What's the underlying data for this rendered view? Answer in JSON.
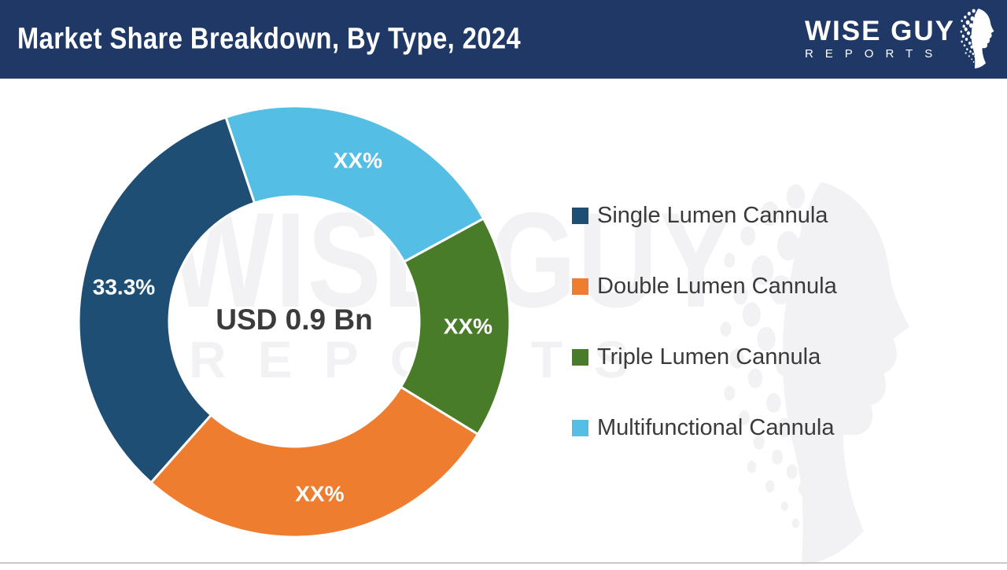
{
  "header": {
    "title": "Market Share Breakdown, By Type, 2024",
    "logo": {
      "wordmark": "WISE GUY",
      "subtext": "REPORTS"
    }
  },
  "watermark": {
    "wordmark": "WISE GUY",
    "subtext": "REPORTS"
  },
  "chart_data": {
    "type": "pie",
    "variant": "donut",
    "title": "Market Share Breakdown, By Type, 2024",
    "center_label": "USD 0.9 Bn",
    "series": [
      {
        "name": "Single Lumen Cannula",
        "value": 33.3,
        "label": "33.3%",
        "color": "#1F4E74"
      },
      {
        "name": "Double Lumen Cannula",
        "value": 27.8,
        "label": "XX%",
        "color": "#EE7D30"
      },
      {
        "name": "Triple Lumen Cannula",
        "value": 16.7,
        "label": "XX%",
        "color": "#487C28"
      },
      {
        "name": "Multifunctional Cannula",
        "value": 22.2,
        "label": "XX%",
        "color": "#54BEE5"
      }
    ],
    "layout": {
      "start_angle_deg": -18.5,
      "direction": "counterclockwise",
      "inner_radius_ratio": 0.58,
      "legend_position": "right",
      "label_position": "inside",
      "slice_border_color": "#ffffff"
    }
  },
  "colors": {
    "header_bg": "#1F3865",
    "center_text": "#3B3B3B",
    "legend_text": "#3A3A3A",
    "watermark": "#F2F2F4",
    "bottom_line": "#C9C9C9"
  }
}
